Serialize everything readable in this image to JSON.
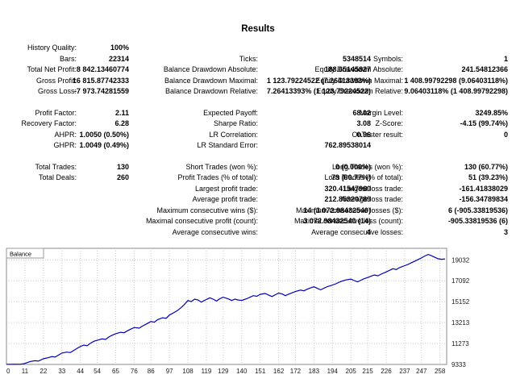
{
  "title": "Results",
  "stats": {
    "sections": [
      {
        "rows": [
          [
            {
              "label": "History Quality:",
              "value": "100%"
            },
            null,
            null
          ],
          [
            {
              "label": "Bars:",
              "value": "22314"
            },
            {
              "label": "Ticks:",
              "value": "5348514"
            },
            {
              "label": "Symbols:",
              "value": "1"
            }
          ],
          [
            {
              "label": "Total Net Profit:",
              "value": "8 842.13460774"
            },
            {
              "label": "Balance Drawdown Absolute:",
              "value": "188.65145827"
            },
            {
              "label": "Equity Drawdown Absolute:",
              "value": "241.54812366"
            }
          ],
          [
            {
              "label": "Gross Profit:",
              "value": "16 815.87742333"
            },
            {
              "label": "Balance Drawdown Maximal:",
              "value": "1 123.79224522 (7.26413393%)"
            },
            {
              "label": "Equity Drawdown Maximal:",
              "value": "1 408.99792298 (9.06403118%)"
            }
          ],
          [
            {
              "label": "Gross Loss:",
              "value": "-7 973.74281559"
            },
            {
              "label": "Balance Drawdown Relative:",
              "value": "7.26413393% (1 123.79224522)"
            },
            {
              "label": "Equity Drawdown Relative:",
              "value": "9.06403118% (1 408.99792298)"
            }
          ]
        ]
      },
      {
        "rows": [
          [
            {
              "label": "Profit Factor:",
              "value": "2.11"
            },
            {
              "label": "Expected Payoff:",
              "value": "68.02"
            },
            {
              "label": "Margin Level:",
              "value": "3249.85%"
            }
          ],
          [
            {
              "label": "Recovery Factor:",
              "value": "6.28"
            },
            {
              "label": "Sharpe Ratio:",
              "value": "3.08"
            },
            {
              "label": "Z-Score:",
              "value": "-4.15 (99.74%)"
            }
          ],
          [
            {
              "label": "AHPR:",
              "value": "1.0050 (0.50%)"
            },
            {
              "label": "LR Correlation:",
              "value": "0.96"
            },
            {
              "label": "OnTester result:",
              "value": "0"
            }
          ],
          [
            {
              "label": "GHPR:",
              "value": "1.0049 (0.49%)"
            },
            {
              "label": "LR Standard Error:",
              "value": "762.89538014"
            },
            null
          ]
        ]
      },
      {
        "rows": [
          [
            {
              "label": "Total Trades:",
              "value": "130"
            },
            {
              "label": "Short Trades (won %):",
              "value": "0 (0.000%)"
            },
            {
              "label": "Long Trades (won %):",
              "value": "130 (60.77%)"
            }
          ],
          [
            {
              "label": "Total Deals:",
              "value": "260"
            },
            {
              "label": "Profit Trades (% of total):",
              "value": "79 (60.77%)"
            },
            {
              "label": "Loss Trades (% of total):",
              "value": "51 (39.23%)"
            }
          ],
          [
            null,
            {
              "label": "Largest profit trade:",
              "value": "320.41547960"
            },
            {
              "label": "Largest loss trade:",
              "value": "-161.41838029"
            }
          ],
          [
            null,
            {
              "label": "Average profit trade:",
              "value": "212.85920789"
            },
            {
              "label": "Average loss trade:",
              "value": "-156.34789834"
            }
          ],
          [
            null,
            {
              "label": "Maximum consecutive wins ($):",
              "value": "14 (3 072.98432540)"
            },
            {
              "label": "Maximum consecutive losses ($):",
              "value": "6 (-905.33819536)"
            }
          ],
          [
            null,
            {
              "label": "Maximal consecutive profit (count):",
              "value": "3 072.98432540 (14)"
            },
            {
              "label": "Maximal consecutive loss (count):",
              "value": "-905.33819536 (6)"
            }
          ],
          [
            null,
            {
              "label": "Average consecutive wins:",
              "value": "4"
            },
            {
              "label": "Average consecutive losses:",
              "value": "3"
            }
          ]
        ]
      }
    ]
  },
  "chart_data": {
    "type": "line",
    "title": "Balance",
    "legend_position": "top-left",
    "grid": true,
    "x_range": [
      0,
      262
    ],
    "y_range": [
      9333,
      20100
    ],
    "x_ticks": [
      0,
      11,
      22,
      33,
      44,
      54,
      65,
      76,
      86,
      97,
      108,
      119,
      129,
      140,
      151,
      162,
      172,
      183,
      194,
      205,
      215,
      226,
      237,
      247,
      258
    ],
    "y_ticks": [
      9333,
      11273,
      13213,
      15152,
      17092,
      19032
    ],
    "line_color": "#0000b8",
    "grid_color": "#c9c9c9",
    "border_color": "#8a8a8a",
    "series": [
      {
        "name": "Balance",
        "points": [
          [
            0,
            9350
          ],
          [
            2,
            9340
          ],
          [
            5,
            9355
          ],
          [
            8,
            9345
          ],
          [
            11,
            9420
          ],
          [
            14,
            9600
          ],
          [
            17,
            9680
          ],
          [
            19,
            9640
          ],
          [
            22,
            9860
          ],
          [
            25,
            9960
          ],
          [
            27,
            10060
          ],
          [
            29,
            10010
          ],
          [
            31,
            10200
          ],
          [
            33,
            10390
          ],
          [
            36,
            10480
          ],
          [
            38,
            10430
          ],
          [
            40,
            10630
          ],
          [
            42,
            10820
          ],
          [
            44,
            10990
          ],
          [
            46,
            11130
          ],
          [
            48,
            11070
          ],
          [
            50,
            11300
          ],
          [
            52,
            11480
          ],
          [
            54,
            11570
          ],
          [
            57,
            11700
          ],
          [
            59,
            11650
          ],
          [
            61,
            11880
          ],
          [
            63,
            12050
          ],
          [
            65,
            12180
          ],
          [
            68,
            12320
          ],
          [
            70,
            12270
          ],
          [
            72,
            12450
          ],
          [
            74,
            12610
          ],
          [
            76,
            12760
          ],
          [
            79,
            12700
          ],
          [
            81,
            12890
          ],
          [
            83,
            13060
          ],
          [
            86,
            13310
          ],
          [
            88,
            13250
          ],
          [
            90,
            13490
          ],
          [
            93,
            13660
          ],
          [
            95,
            13610
          ],
          [
            97,
            13910
          ],
          [
            100,
            14160
          ],
          [
            102,
            14360
          ],
          [
            104,
            14610
          ],
          [
            106,
            14910
          ],
          [
            108,
            15260
          ],
          [
            110,
            15160
          ],
          [
            112,
            15390
          ],
          [
            114,
            15310
          ],
          [
            116,
            15110
          ],
          [
            119,
            15360
          ],
          [
            121,
            15510
          ],
          [
            123,
            15390
          ],
          [
            125,
            15210
          ],
          [
            127,
            15430
          ],
          [
            129,
            15570
          ],
          [
            132,
            15410
          ],
          [
            134,
            15260
          ],
          [
            136,
            15390
          ],
          [
            138,
            15310
          ],
          [
            140,
            15270
          ],
          [
            143,
            15430
          ],
          [
            145,
            15570
          ],
          [
            147,
            15710
          ],
          [
            149,
            15650
          ],
          [
            151,
            15830
          ],
          [
            154,
            15910
          ],
          [
            156,
            15770
          ],
          [
            158,
            15630
          ],
          [
            160,
            15790
          ],
          [
            162,
            15950
          ],
          [
            164,
            15870
          ],
          [
            166,
            15710
          ],
          [
            168,
            15850
          ],
          [
            170,
            15970
          ],
          [
            172,
            16090
          ],
          [
            175,
            16230
          ],
          [
            177,
            16160
          ],
          [
            179,
            16310
          ],
          [
            181,
            16430
          ],
          [
            183,
            16530
          ],
          [
            185,
            16390
          ],
          [
            187,
            16250
          ],
          [
            189,
            16410
          ],
          [
            191,
            16550
          ],
          [
            194,
            16690
          ],
          [
            196,
            16810
          ],
          [
            198,
            16950
          ],
          [
            200,
            17070
          ],
          [
            202,
            17170
          ],
          [
            205,
            17250
          ],
          [
            207,
            17110
          ],
          [
            209,
            16990
          ],
          [
            211,
            17150
          ],
          [
            213,
            17290
          ],
          [
            215,
            17390
          ],
          [
            217,
            17510
          ],
          [
            219,
            17630
          ],
          [
            221,
            17550
          ],
          [
            223,
            17710
          ],
          [
            226,
            17910
          ],
          [
            228,
            18060
          ],
          [
            230,
            18210
          ],
          [
            232,
            18130
          ],
          [
            234,
            18310
          ],
          [
            237,
            18490
          ],
          [
            239,
            18610
          ],
          [
            241,
            18760
          ],
          [
            243,
            18910
          ],
          [
            245,
            19060
          ],
          [
            247,
            19210
          ],
          [
            249,
            19390
          ],
          [
            251,
            19530
          ],
          [
            253,
            19410
          ],
          [
            255,
            19260
          ],
          [
            257,
            19130
          ],
          [
            259,
            19080
          ],
          [
            261,
            19120
          ]
        ]
      }
    ]
  }
}
